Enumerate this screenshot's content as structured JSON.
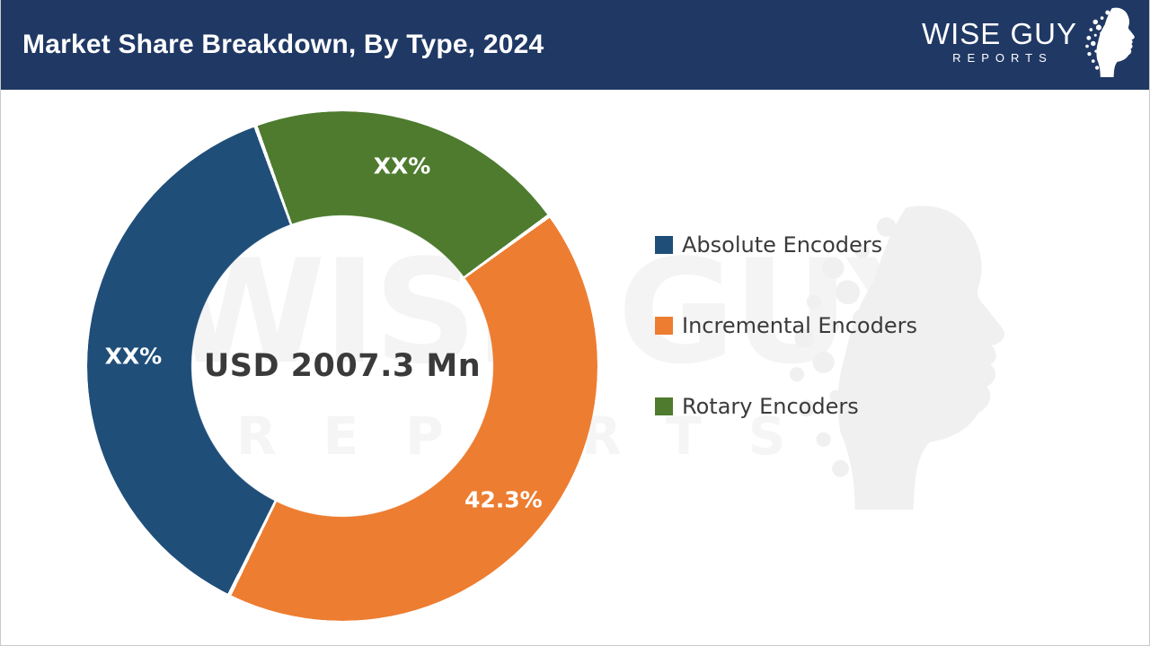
{
  "header": {
    "title": "Market Share Breakdown, By Type, 2024",
    "bg_color": "#203864",
    "logo": {
      "line1": "WISE GUY",
      "line2": "REPORTS"
    }
  },
  "watermark": {
    "line1": "WISE GUY",
    "line2": "REPORTS"
  },
  "chart_data": {
    "type": "pie",
    "subtype": "donut",
    "center_label": "USD 2007.3 Mn",
    "segments": [
      {
        "name": "Absolute Encoders",
        "value_pct": 37.2,
        "slice_label": "XX%",
        "color": "#1F4E79"
      },
      {
        "name": "Incremental Encoders",
        "value_pct": 42.3,
        "slice_label": "42.3%",
        "color": "#ED7D31"
      },
      {
        "name": "Rotary Encoders",
        "value_pct": 20.5,
        "slice_label": "XX%",
        "color": "#4E7B2E"
      }
    ],
    "start_angle_deg": 339.7,
    "draw_order": [
      2,
      1,
      0
    ],
    "direction": "clockwise",
    "inner_radius_ratio": 0.59,
    "label_radius_ratio": 0.82,
    "slice_label_color": "#ffffff",
    "separator_color": "#ffffff",
    "legend_position": "right",
    "grid": false
  }
}
